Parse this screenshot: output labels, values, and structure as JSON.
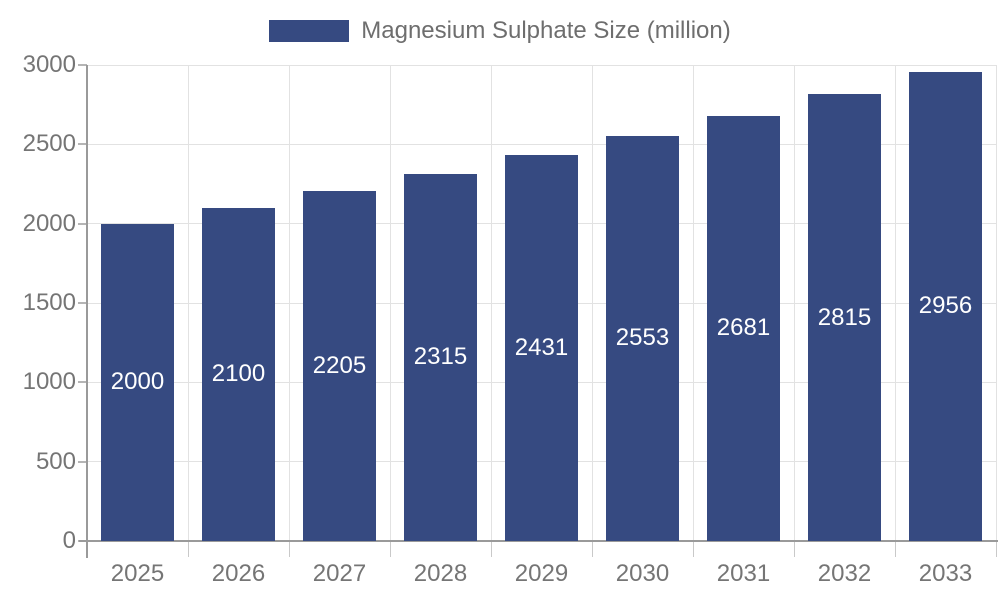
{
  "chart_data": {
    "type": "bar",
    "title": "Magnesium Sulphate Size (million)",
    "categories": [
      "2025",
      "2026",
      "2027",
      "2028",
      "2029",
      "2030",
      "2031",
      "2032",
      "2033"
    ],
    "values": [
      2000,
      2100,
      2205,
      2315,
      2431,
      2553,
      2681,
      2815,
      2956
    ],
    "y_ticks": [
      0,
      500,
      1000,
      1500,
      2000,
      2500,
      3000
    ],
    "ylim": [
      0,
      3000
    ],
    "xlabel": "",
    "ylabel": "",
    "grid": true,
    "legend_position": "top-center",
    "value_labels": "inside-center",
    "colors": {
      "bar": "#364a81",
      "value_label": "#ffffff",
      "axis_label": "#757575",
      "legend_text": "#6e6e6e",
      "gridline": "#e2e2e2",
      "axis_line": "#9a9a9a",
      "background": "#ffffff"
    }
  }
}
